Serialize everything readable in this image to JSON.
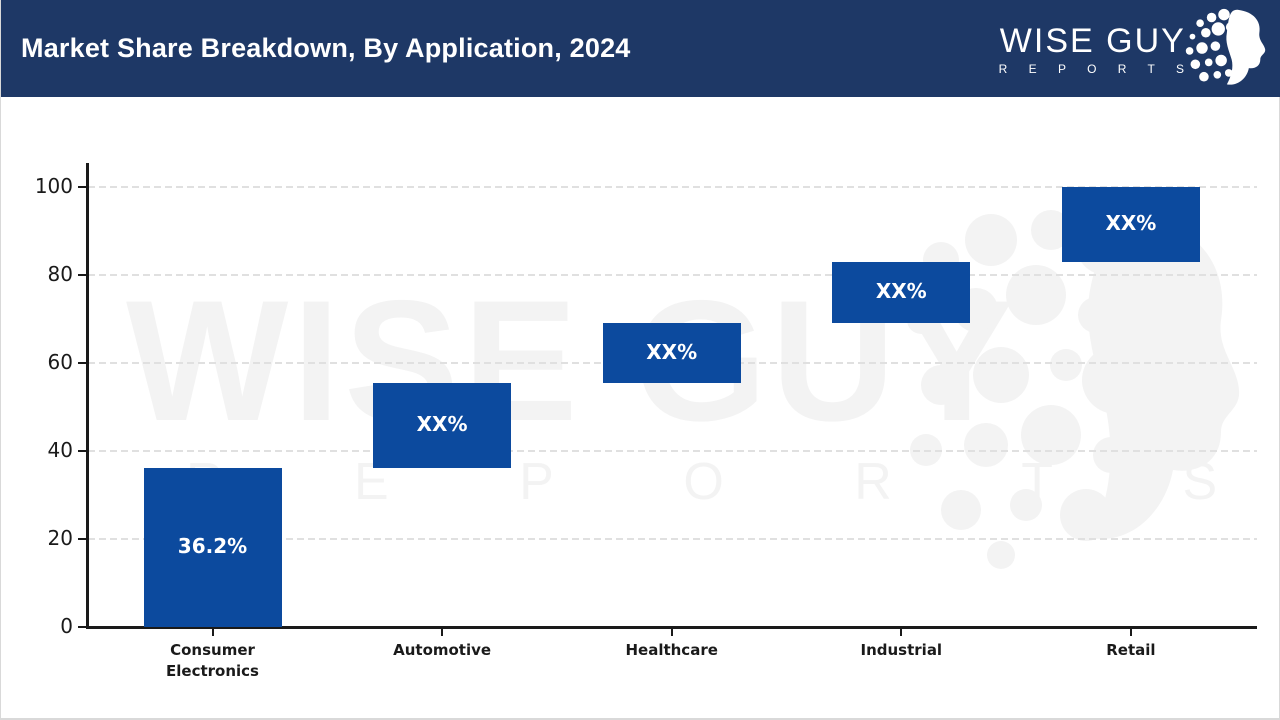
{
  "header": {
    "title": "Market Share Breakdown, By Application, 2024",
    "bg_color": "#1e3866",
    "logo": {
      "wordmark": "WISE GUY",
      "sub": "R E P O R T S"
    }
  },
  "watermark": {
    "wordmark": "WISE GUY",
    "sub": "R E P O R T S"
  },
  "chart_data": {
    "type": "bar",
    "variant": "waterfall",
    "title": "Market Share Breakdown, By Application, 2024",
    "categories": [
      "Consumer Electronics",
      "Automotive",
      "Healthcare",
      "Industrial",
      "Retail"
    ],
    "segments": [
      {
        "category": "Consumer Electronics",
        "start": 0,
        "end": 36.2,
        "label": "36.2%"
      },
      {
        "category": "Automotive",
        "start": 36.2,
        "end": 55.5,
        "label": "XX%"
      },
      {
        "category": "Healthcare",
        "start": 55.5,
        "end": 69.1,
        "label": "XX%"
      },
      {
        "category": "Industrial",
        "start": 69.1,
        "end": 83.0,
        "label": "XX%"
      },
      {
        "category": "Retail",
        "start": 83.0,
        "end": 100.0,
        "label": "XX%"
      }
    ],
    "yticks": [
      0,
      20,
      40,
      60,
      80,
      100
    ],
    "ylim": [
      0,
      105
    ],
    "xlabel": "",
    "ylabel": "",
    "grid": "horizontal-dashed",
    "legend": "none",
    "bar_color": "#0c4a9e",
    "bar_label_color": "#ffffff",
    "axis_color": "#1a1a1a",
    "grid_color": "#e0e0e0"
  }
}
